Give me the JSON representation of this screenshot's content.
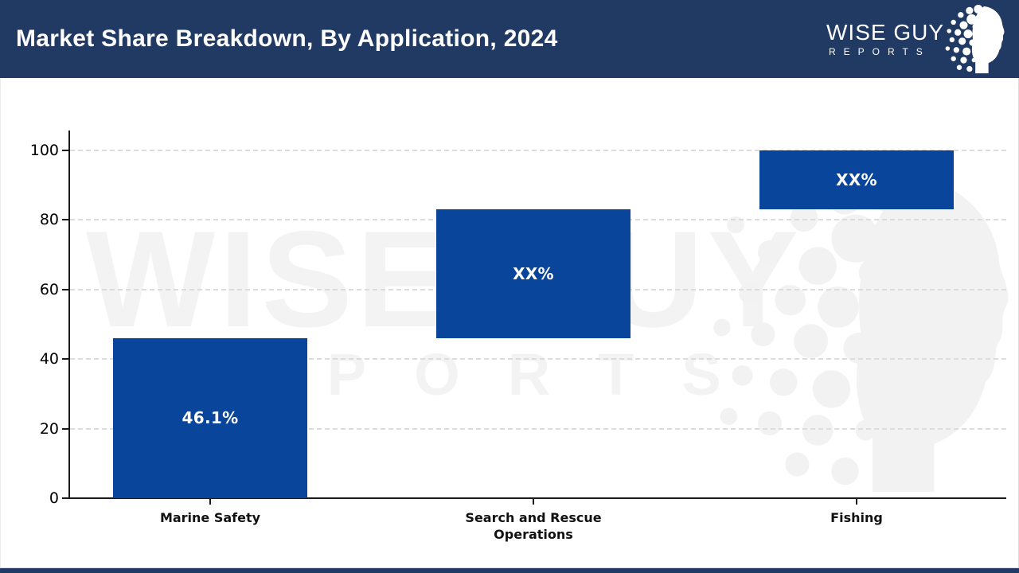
{
  "header": {
    "bg_color": "#213a64"
  },
  "logo": {
    "line1": "WISE GUY",
    "line2": "REPORTS"
  },
  "watermark": {
    "line1": "WISE GUY",
    "line2": "REPORTS"
  },
  "chart_data": {
    "type": "bar",
    "subtype": "stacked-waterfall-percentage",
    "title": "Market Share Breakdown, By Application, 2024",
    "categories": [
      {
        "lines": [
          "Marine Safety"
        ]
      },
      {
        "lines": [
          "Search and Rescue",
          "Operations"
        ]
      },
      {
        "lines": [
          "Fishing"
        ]
      }
    ],
    "series": [
      {
        "name": "Marine Safety",
        "start": 0,
        "end": 46.1,
        "label": "46.1%"
      },
      {
        "name": "Search and Rescue Operations",
        "start": 46.1,
        "end": 83,
        "label": "XX%"
      },
      {
        "name": "Fishing",
        "start": 83,
        "end": 100,
        "label": "XX%"
      }
    ],
    "ylim": [
      0,
      100
    ],
    "yticks": [
      0,
      20,
      40,
      60,
      80,
      100
    ],
    "bar_color": "#0a459c",
    "value_label_color": "#ffffff",
    "grid": "horizontal-dashed",
    "legend": "none"
  }
}
